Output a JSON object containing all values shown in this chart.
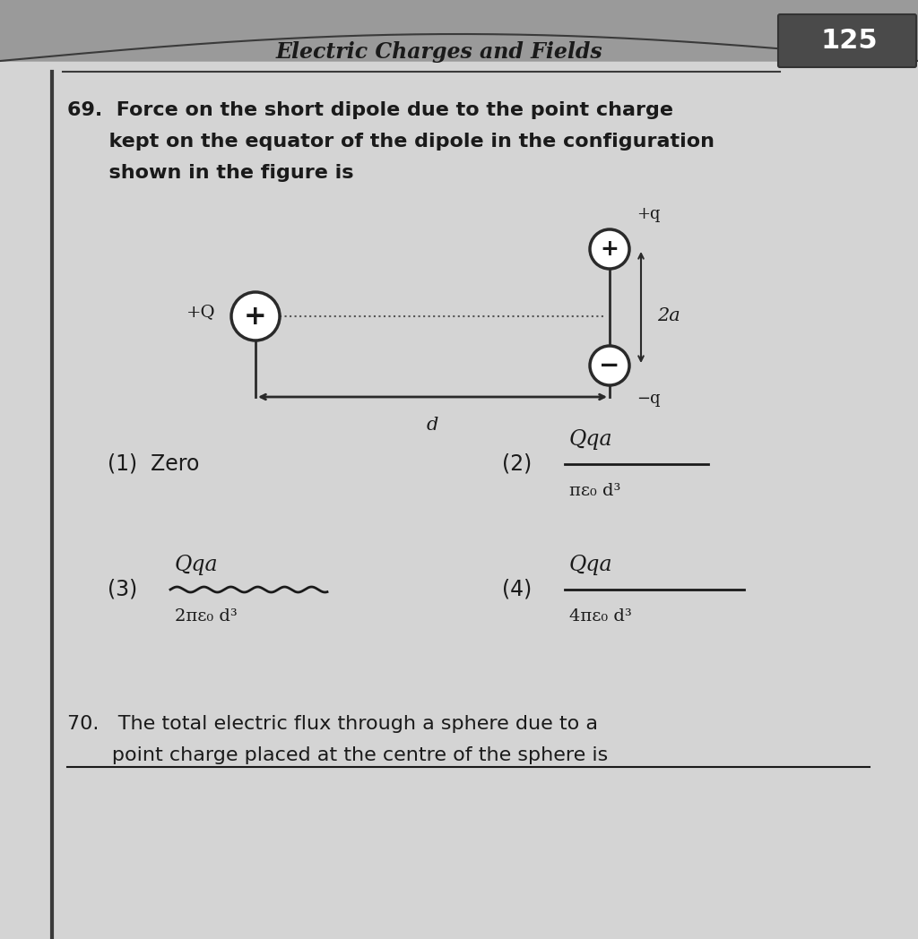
{
  "page_bg": "#c8c8c8",
  "content_bg": "#d8d8d8",
  "header_text": "Electric Charges and Fields",
  "header_num": "125",
  "header_num_bg": "#4a4a4a",
  "q69_line1": "69.  Force on the short dipole due to the point charge",
  "q69_line2": "      kept on the equator of the dipole in the configuration",
  "q69_line3": "      shown in the figure is",
  "opt1": "(1)  Zero",
  "opt2_label": "(2)",
  "opt2_num": "Qqa",
  "opt2_den": "πε₀ d³",
  "opt3_label": "(3)",
  "opt3_num": "Qqa",
  "opt3_den": "2πε₀ d³",
  "opt4_label": "(4)",
  "opt4_num": "Qqa",
  "opt4_den": "4πε₀ d³",
  "q70_line1": "70.   The total electric flux through a sphere due to a",
  "q70_line2": "       point charge placed at the centre of the sphere is",
  "text_color": "#1a1a1a",
  "line_color": "#2a2a2a",
  "dot_color": "#555555"
}
